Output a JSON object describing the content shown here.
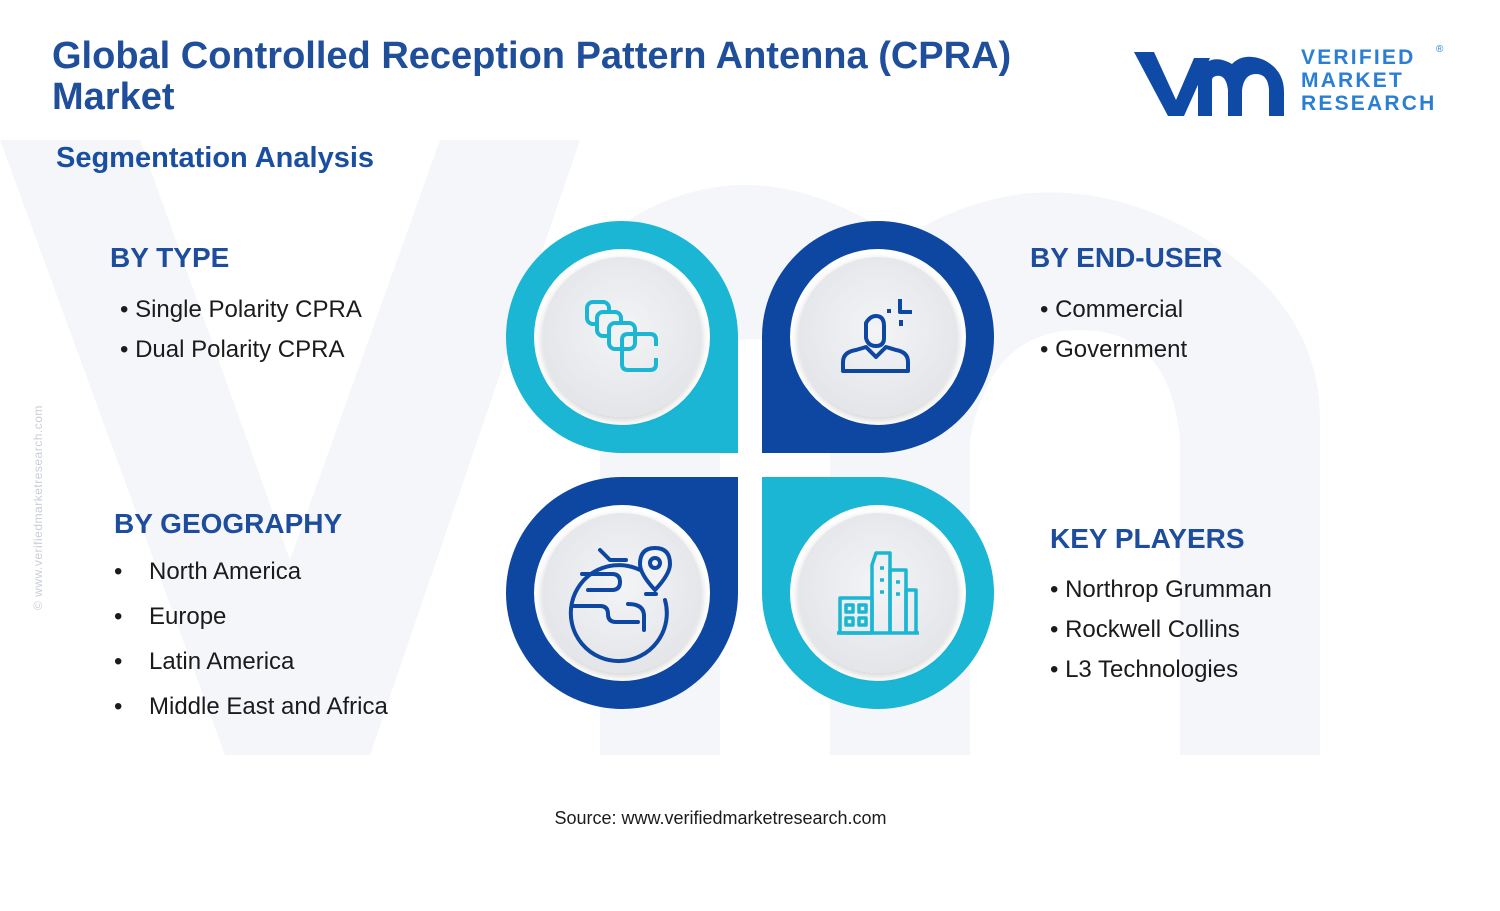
{
  "title": "Global Controlled Reception Pattern Antenna (CPRA) Market",
  "subtitle": "Segmentation Analysis",
  "logo": {
    "line1": "VERIFIED",
    "line2": "MARKET",
    "line3": "RESEARCH",
    "reg": "®"
  },
  "side_copyright": "© www.verifiedmarketresearch.com",
  "segments": {
    "type": {
      "heading": "BY TYPE",
      "items": [
        "Single Polarity CPRA",
        "Dual Polarity CPRA"
      ]
    },
    "end_user": {
      "heading": "BY END-USER",
      "items": [
        "Commercial",
        "Government"
      ]
    },
    "geography": {
      "heading": "BY GEOGRAPHY",
      "items": [
        "North America",
        "Europe",
        "Latin America",
        "Middle East and Africa"
      ]
    },
    "key_players": {
      "heading": "KEY PLAYERS",
      "items": [
        "Northrop Grumman",
        "Rockwell Collins",
        "L3 Technologies"
      ]
    }
  },
  "icons": {
    "type": "layered-squares-icon",
    "end_user": "user-icon",
    "geography": "globe-pin-icon",
    "key_players": "buildings-icon"
  },
  "source": "Source: www.verifiedmarketresearch.com",
  "colors": {
    "title": "#1f4e9a",
    "cyan": "#1ab6d3",
    "navy": "#0d47a1",
    "logo": "#2a7fd4"
  }
}
